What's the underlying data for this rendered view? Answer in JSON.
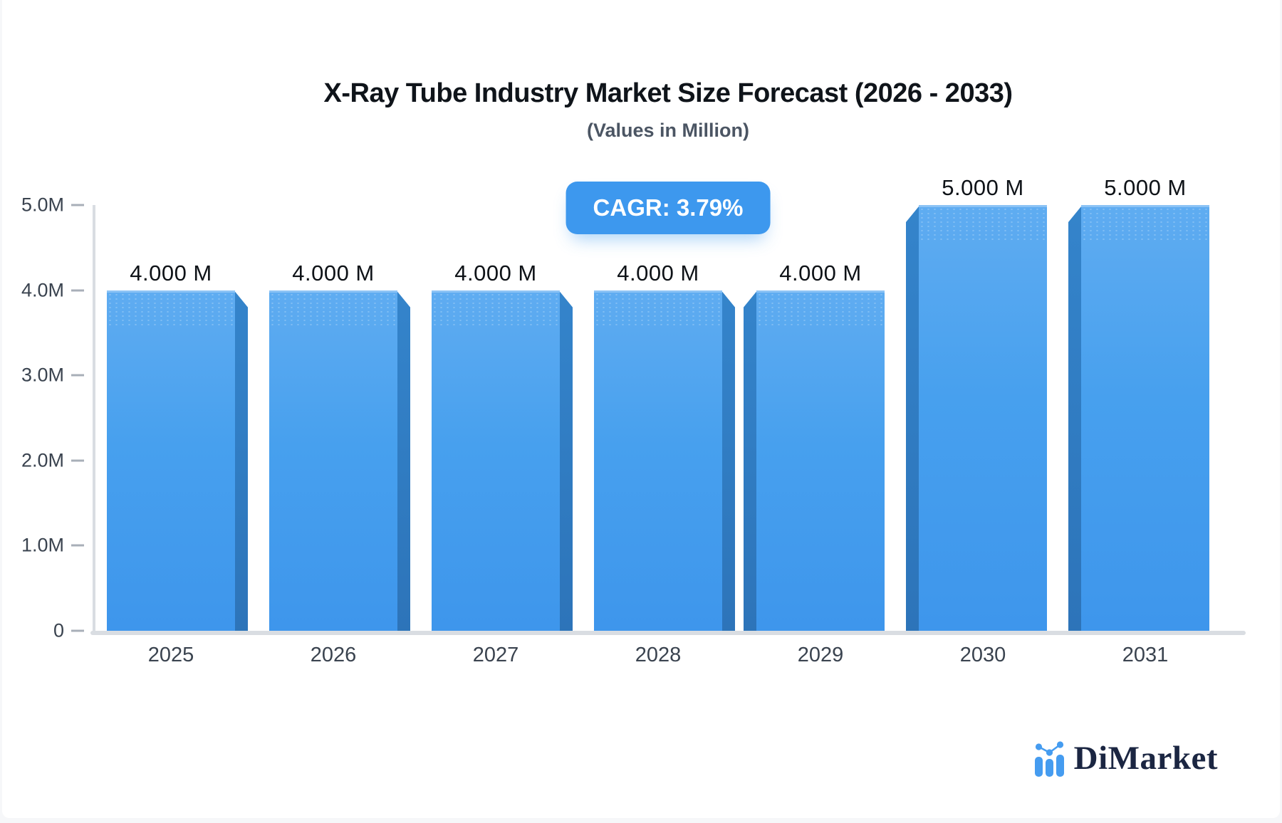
{
  "title": "X-Ray Tube Industry Market Size Forecast (2026 - 2033)",
  "subtitle": "(Values in Million)",
  "cagr_badge": "CAGR: 3.79%",
  "logo": {
    "text": "DiMarket",
    "icon": "mini-bar-chart-icon",
    "icon_color": "#459cf0",
    "text_color": "#1b2642"
  },
  "colors": {
    "bar_face": "#47a0ee",
    "bar_side": "#2f7dc4",
    "badge_bg": "#3d98ee",
    "axis_line": "#d9dde2",
    "tick_text": "#3a434f"
  },
  "chart_data": {
    "type": "bar",
    "title": "X-Ray Tube Industry Market Size Forecast (2026 - 2033)",
    "subtitle": "(Values in Million)",
    "xlabel": "",
    "ylabel": "",
    "categories": [
      "2025",
      "2026",
      "2027",
      "2028",
      "2029",
      "2030",
      "2031"
    ],
    "values": [
      4.0,
      4.0,
      4.0,
      4.0,
      4.0,
      5.0,
      5.0
    ],
    "value_labels": [
      "4.000 M",
      "4.000 M",
      "4.000 M",
      "4.000 M",
      "4.000 M",
      "5.000 M",
      "5.000 M"
    ],
    "bar_3d_side": [
      "right",
      "right",
      "right",
      "right",
      "left",
      "left",
      "left"
    ],
    "ylim": [
      0,
      5
    ],
    "yticks": [
      0,
      1,
      2,
      3,
      4,
      5
    ],
    "ytick_labels": [
      "0",
      "1.0M",
      "2.0M",
      "3.0M",
      "4.0M",
      "5.0M"
    ],
    "grid": false,
    "legend": null,
    "annotations": [
      "CAGR: 3.79%"
    ]
  }
}
